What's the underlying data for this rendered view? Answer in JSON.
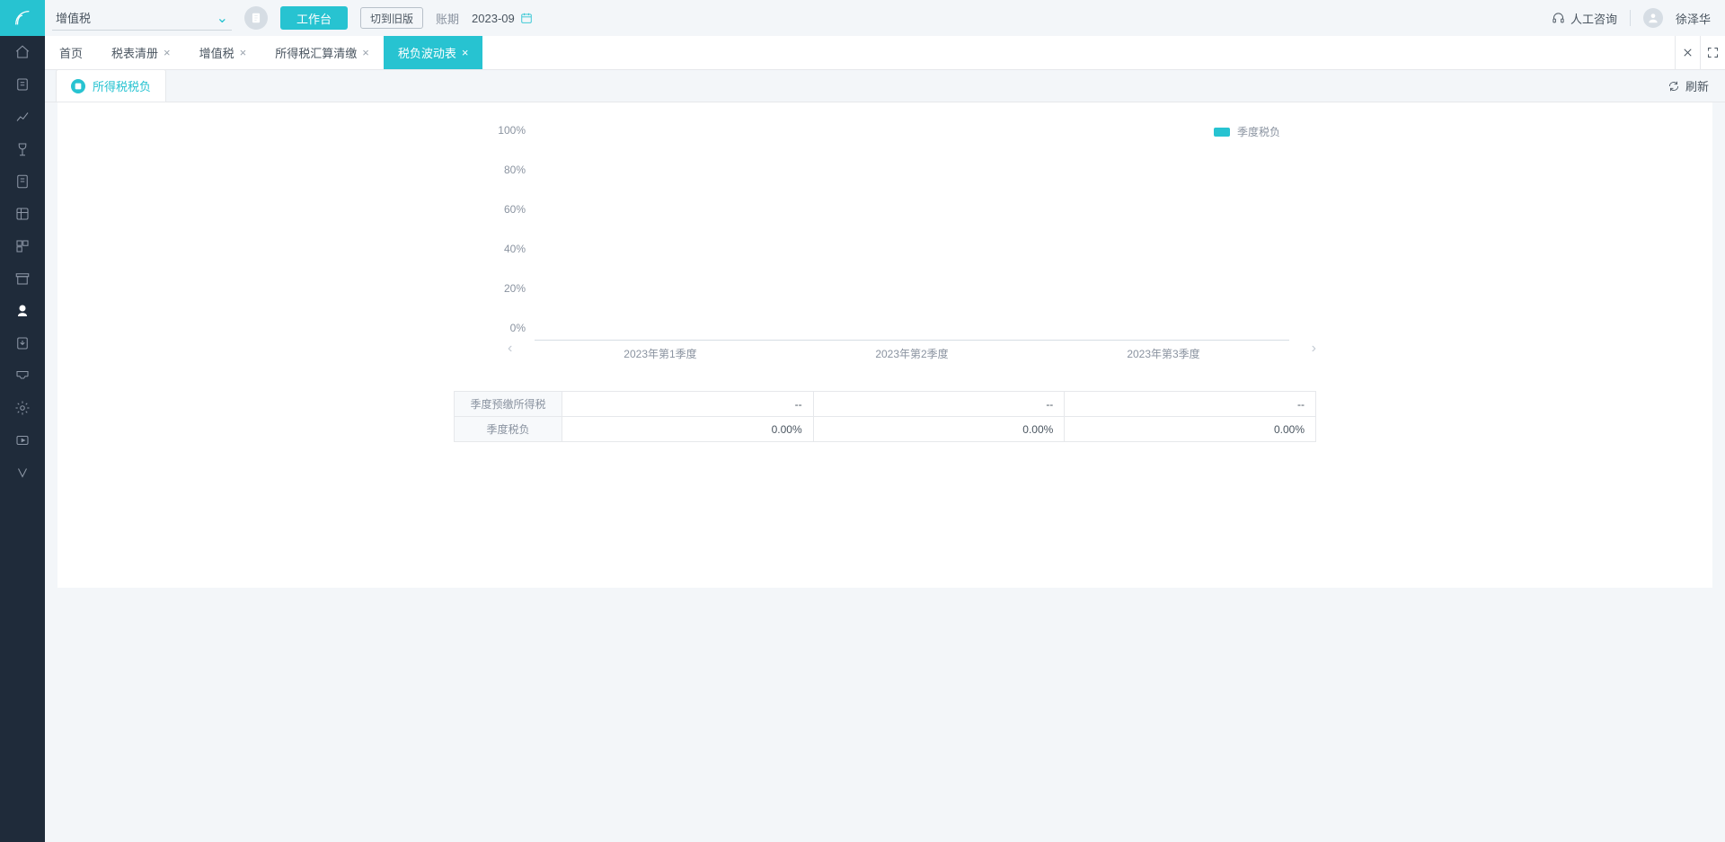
{
  "header": {
    "company_selector": "增值税",
    "workbench_btn": "工作台",
    "switch_old_btn": "切到旧版",
    "period_label": "账期",
    "period_value": "2023-09",
    "support_label": "人工咨询",
    "username": "徐泽华"
  },
  "sidebar": {
    "items": [
      {
        "name": "home-icon"
      },
      {
        "name": "ledger-icon"
      },
      {
        "name": "analytics-icon"
      },
      {
        "name": "funds-icon"
      },
      {
        "name": "report-icon"
      },
      {
        "name": "forms-icon"
      },
      {
        "name": "org-icon"
      },
      {
        "name": "archive-icon"
      },
      {
        "name": "tax-icon",
        "active": true
      },
      {
        "name": "export-icon"
      },
      {
        "name": "inbox-icon"
      },
      {
        "name": "settings-icon"
      },
      {
        "name": "video-icon"
      },
      {
        "name": "v-icon"
      }
    ]
  },
  "tabs": [
    {
      "label": "首页",
      "closable": false,
      "active": false
    },
    {
      "label": "税表清册",
      "closable": true,
      "active": false
    },
    {
      "label": "增值税",
      "closable": true,
      "active": false
    },
    {
      "label": "所得税汇算清缴",
      "closable": true,
      "active": false
    },
    {
      "label": "税负波动表",
      "closable": true,
      "active": true
    }
  ],
  "subtab": {
    "label": "所得税税负"
  },
  "refresh_label": "刷新",
  "chart": {
    "type": "bar",
    "legend_label": "季度税负",
    "legend_color": "#27c3d1",
    "categories": [
      "2023年第1季度",
      "2023年第2季度",
      "2023年第3季度"
    ],
    "values": [
      0,
      0,
      0
    ],
    "ylim": [
      0,
      100
    ],
    "ytick_step": 20,
    "y_suffix": "%",
    "axis_color": "#d6dde4",
    "label_color": "#8a93a0",
    "background_color": "#ffffff"
  },
  "table": {
    "row_headers": [
      "季度预缴所得税",
      "季度税负"
    ],
    "rows": [
      [
        "--",
        "--",
        "--"
      ],
      [
        "0.00%",
        "0.00%",
        "0.00%"
      ]
    ]
  }
}
